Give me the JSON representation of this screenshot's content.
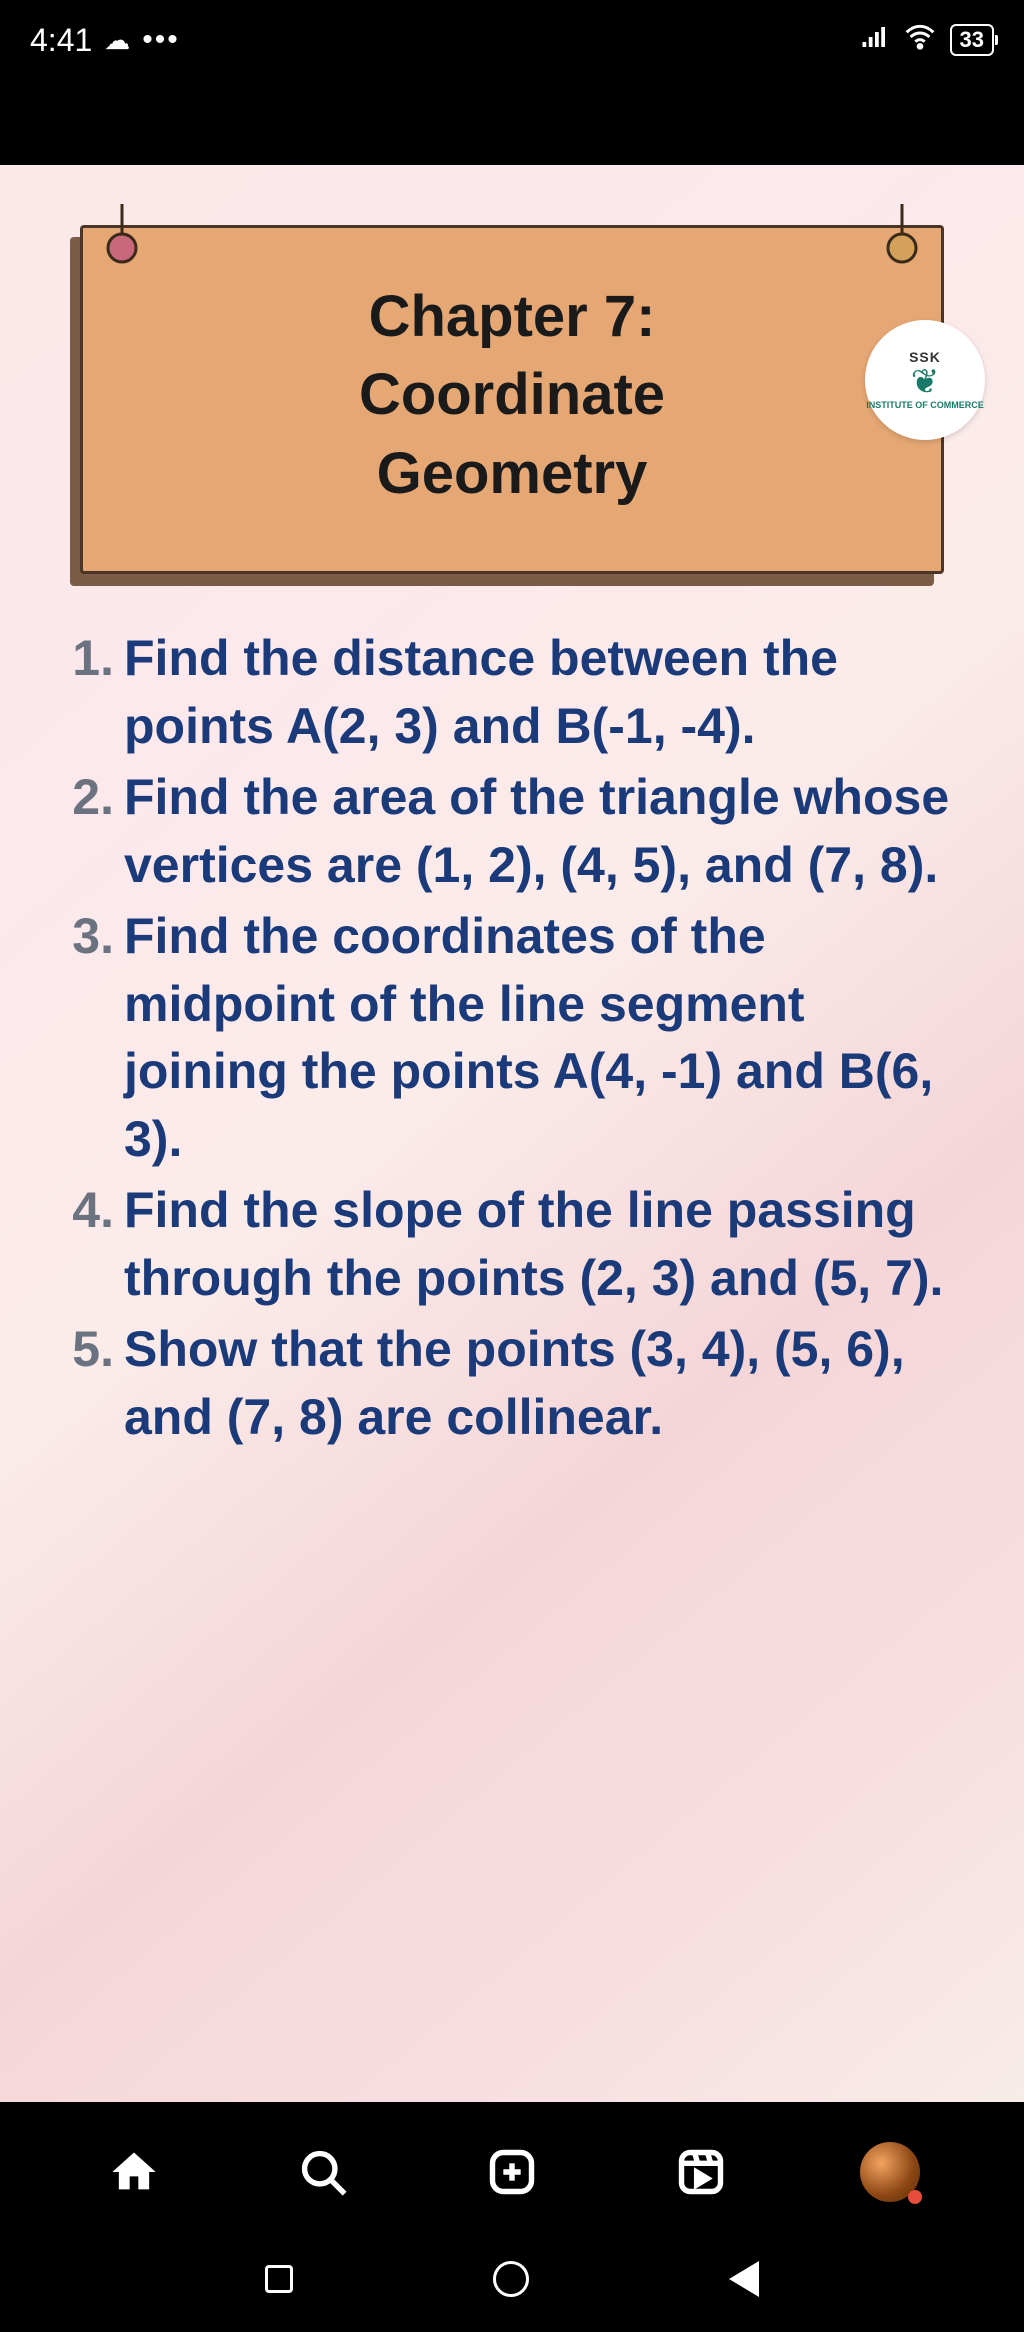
{
  "status": {
    "time": "4:41",
    "battery": "33"
  },
  "title": {
    "line1": "Chapter 7:",
    "line2": "Coordinate",
    "line3": "Geometry"
  },
  "logo": {
    "top": "SSK",
    "sub": "INSTITUTE OF COMMERCE"
  },
  "questions": [
    {
      "num": "1.",
      "text": "Find the distance between the points A(2, 3) and B(-1, -4)."
    },
    {
      "num": "2.",
      "text": "Find the area of the triangle whose vertices are (1, 2), (4, 5), and (7, 8)."
    },
    {
      "num": "3.",
      "text": "Find the coordinates of the midpoint of the line segment joining the points A(4, -1) and B(6, 3)."
    },
    {
      "num": "4.",
      "text": "Find the slope of the line passing through the points (2, 3) and (5, 7)."
    },
    {
      "num": "5.",
      "text": "Show that the points (3, 4), (5, 6), and (7, 8) are collinear."
    }
  ],
  "colors": {
    "card_bg": "#e5a774",
    "card_border": "#4a3528",
    "q_num": "#6b7280",
    "q_text": "#1a3a7a",
    "bg_black": "#000000"
  }
}
